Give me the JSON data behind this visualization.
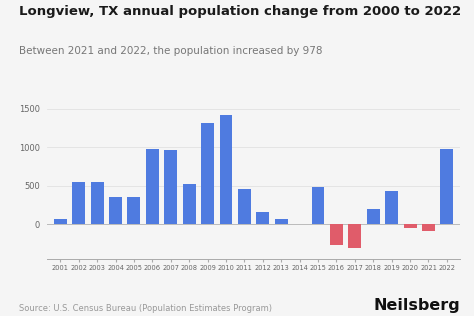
{
  "title": "Longview, TX annual population change from 2000 to 2022",
  "subtitle": "Between 2021 and 2022, the population increased by 978",
  "source": "Source: U.S. Census Bureau (Population Estimates Program)",
  "branding": "Neilsberg",
  "years": [
    2001,
    2002,
    2003,
    2004,
    2005,
    2006,
    2007,
    2008,
    2009,
    2010,
    2011,
    2012,
    2013,
    2014,
    2015,
    2016,
    2017,
    2018,
    2019,
    2020,
    2021,
    2022
  ],
  "values": [
    75,
    555,
    555,
    360,
    355,
    985,
    960,
    530,
    1310,
    1420,
    465,
    155,
    75,
    0,
    480,
    -270,
    -310,
    195,
    440,
    -50,
    -90,
    978
  ],
  "colors": [
    "#4f7be0",
    "#4f7be0",
    "#4f7be0",
    "#4f7be0",
    "#4f7be0",
    "#4f7be0",
    "#4f7be0",
    "#4f7be0",
    "#4f7be0",
    "#4f7be0",
    "#4f7be0",
    "#4f7be0",
    "#4f7be0",
    "#4f7be0",
    "#4f7be0",
    "#e05c6a",
    "#e05c6a",
    "#4f7be0",
    "#4f7be0",
    "#e05c6a",
    "#e05c6a",
    "#4f7be0"
  ],
  "ylim": [
    -450,
    1600
  ],
  "yticks": [
    0,
    500,
    1000,
    1500
  ],
  "bg_color": "#f5f5f5",
  "bar_width": 0.7,
  "title_fontsize": 9.5,
  "subtitle_fontsize": 7.5,
  "source_fontsize": 6.0,
  "brand_fontsize": 11.5
}
